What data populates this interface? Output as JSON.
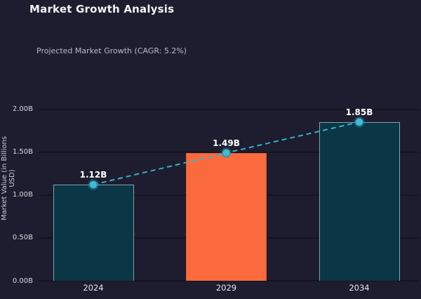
{
  "page": {
    "title": "Market Growth Analysis",
    "subtitle": "Projected Market Growth (CAGR: 5.2%)"
  },
  "chart_data": {
    "type": "bar",
    "title": "Market Growth Analysis",
    "subtitle": "Projected Market Growth (CAGR: 5.2%)",
    "categories": [
      "2024",
      "2029",
      "2034"
    ],
    "values": [
      1.12,
      1.49,
      1.85
    ],
    "value_labels": [
      "1.12B",
      "1.49B",
      "1.85B"
    ],
    "series": [
      {
        "name": "Market Value",
        "values": [
          1.12,
          1.49,
          1.85
        ]
      }
    ],
    "overlay_trend_line": {
      "style": "dashed",
      "color": "#36b0c5",
      "marker": "circle",
      "marker_color": "#3fbcd4",
      "points": [
        1.12,
        1.49,
        1.85
      ]
    },
    "xlabel": "",
    "ylabel": "Market Value (in Billions USD)",
    "ylim": [
      0,
      2.0
    ],
    "yticks": [
      0,
      0.5,
      1.0,
      1.5,
      2.0
    ],
    "ytick_labels": [
      "0.00B",
      "0.50B",
      "1.00B",
      "1.50B",
      "2.00B"
    ],
    "grid": "horizontal",
    "legend": "none",
    "colors": {
      "background": "#1d1d2f",
      "bar_fill": [
        "#0a3645",
        "#fb6a3d",
        "#0a3645"
      ],
      "bar_border": [
        "#7fa3ad",
        "#e4582e",
        "#7fa3ad"
      ],
      "gridline": "rgba(0,0,0,0.30)",
      "title_text": "#f2f2f6",
      "subtitle_text": "#b9b9c6",
      "tick_text": "#d6d6e0",
      "value_label_text": "#ffffff"
    }
  }
}
